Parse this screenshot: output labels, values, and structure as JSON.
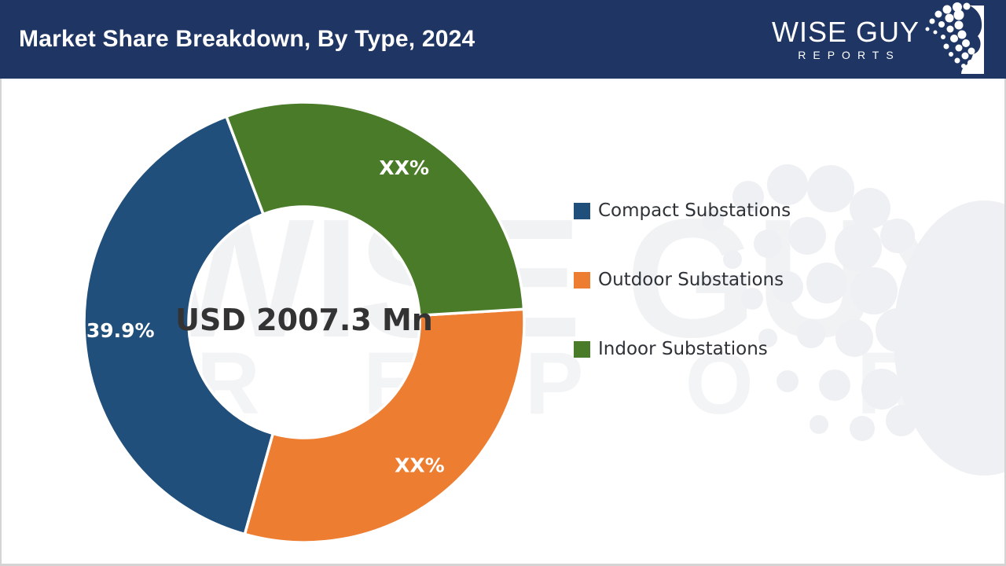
{
  "header": {
    "title": "Market Share Breakdown, By Type, 2024",
    "logo": {
      "primary": "WISE GUY",
      "secondary": "REPORTS"
    }
  },
  "watermark": {
    "primary": "WISE GUY",
    "secondary": "R E P O R T S"
  },
  "chart_data": {
    "type": "pie",
    "variant": "donut",
    "title": "Market Share Breakdown, By Type, 2024",
    "center_label": "USD 2007.3 Mn",
    "start_angle_deg": 110.7,
    "direction": "counterclockwise",
    "inner_radius_ratio": 0.525,
    "segments": [
      {
        "label": "Compact Substations",
        "value_pct": 39.9,
        "display_label": "39.9%",
        "color": "#1F4F7A"
      },
      {
        "label": "Outdoor Substations",
        "value_pct": 30.3,
        "display_label": "XX%",
        "color": "#ED7D31"
      },
      {
        "label": "Indoor Substations",
        "value_pct": 29.8,
        "display_label": "XX%",
        "color": "#4A7B28"
      }
    ],
    "legend": {
      "position": "right",
      "items": [
        "Compact Substations",
        "Outdoor Substations",
        "Indoor Substations"
      ]
    }
  },
  "theme": {
    "header_background": "#1F3664",
    "content_border": "#D4D4D4",
    "center_text_color": "#333333",
    "legend_text_color": "#2E3237",
    "segment_label_color": "#FFFFFF"
  }
}
